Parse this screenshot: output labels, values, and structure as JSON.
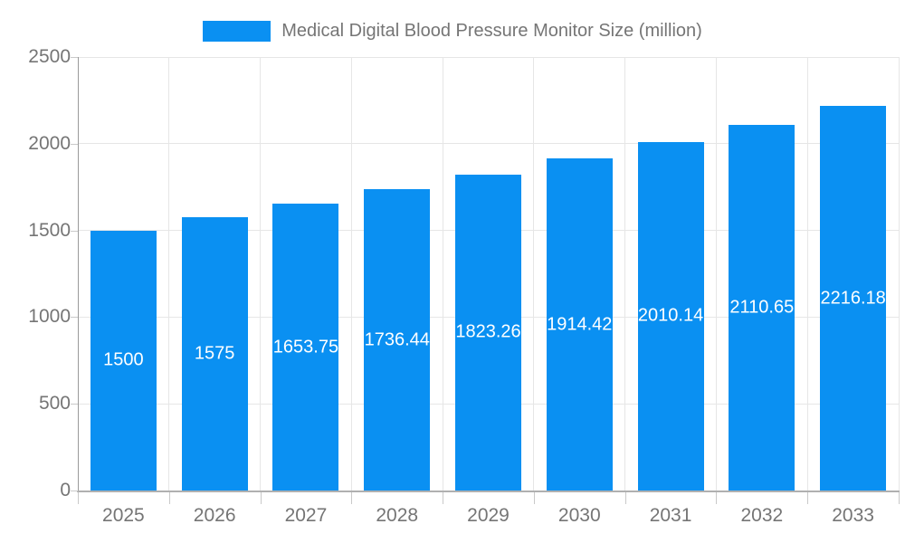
{
  "chart_data": {
    "type": "bar",
    "title": "Medical Digital Blood Pressure Monitor Size (million)",
    "categories": [
      "2025",
      "2026",
      "2027",
      "2028",
      "2029",
      "2030",
      "2031",
      "2032",
      "2033"
    ],
    "series": [
      {
        "name": "Medical Digital Blood Pressure Monitor Size (million)",
        "values": [
          1500,
          1575,
          1653.75,
          1736.44,
          1823.26,
          1914.42,
          2010.14,
          2110.65,
          2216.18
        ]
      }
    ],
    "value_labels": [
      "1500",
      "1575",
      "1653.75",
      "1736.44",
      "1823.26",
      "1914.42",
      "2010.14",
      "2110.65",
      "2216.18"
    ],
    "xlabel": "",
    "ylabel": "",
    "ylim": [
      0,
      2500
    ],
    "y_ticks": [
      0,
      500,
      1000,
      1500,
      2000,
      2500
    ],
    "grid": true,
    "legend_position": "top",
    "colors": {
      "bar": "#0a90f2",
      "bar_value_text": "#ffffff",
      "axis_text": "#757575",
      "gridline": "#e6e6e6",
      "axis_line": "#b0b0b0"
    }
  }
}
